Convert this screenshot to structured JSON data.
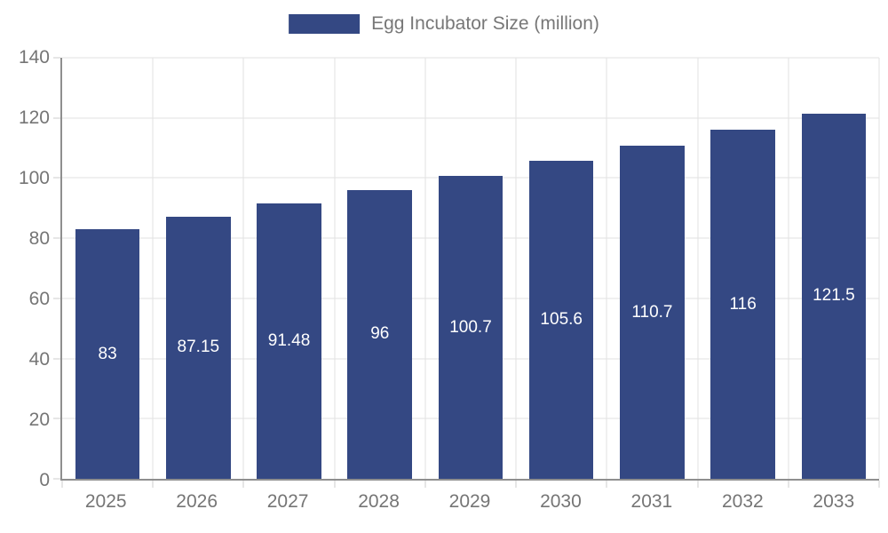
{
  "legend": {
    "label": "Egg Incubator Size (million)"
  },
  "chart_data": {
    "type": "bar",
    "title": "Egg Incubator Size (million)",
    "categories": [
      "2025",
      "2026",
      "2027",
      "2028",
      "2029",
      "2030",
      "2031",
      "2032",
      "2033"
    ],
    "series": [
      {
        "name": "Egg Incubator Size (million)",
        "values": [
          83,
          87.15,
          91.48,
          96,
          100.7,
          105.6,
          110.7,
          116,
          121.5
        ],
        "labels": [
          "83",
          "87.15",
          "91.48",
          "96",
          "100.7",
          "105.6",
          "110.7",
          "116",
          "121.5"
        ]
      }
    ],
    "xlabel": "",
    "ylabel": "",
    "ylim": [
      0,
      140
    ],
    "yticks": [
      0,
      20,
      40,
      60,
      80,
      100,
      120,
      140
    ],
    "grid": true,
    "legend_position": "top-center",
    "colors": {
      "bar": "#344883",
      "bar_value_label": "#ffffff",
      "axis_text": "#757575",
      "legend_text": "#777777",
      "gridline": "#e2e2e2",
      "axis_line": "#8f8f8f",
      "tick": "#cccccc",
      "background": "#ffffff"
    }
  }
}
